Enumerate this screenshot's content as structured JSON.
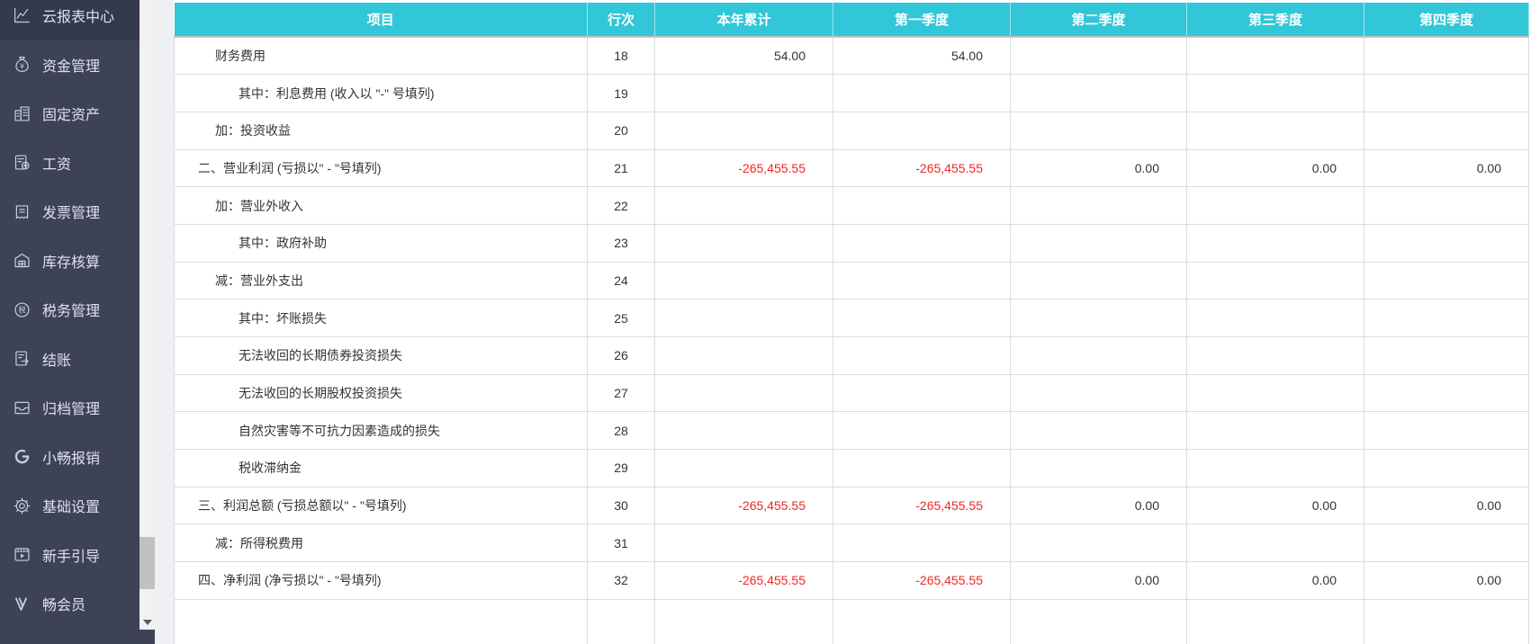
{
  "colors": {
    "accent_header": "#31c6d8",
    "sidebar_bg": "#3e4257",
    "sidebar_text": "#dce1ee",
    "negative_value": "#f42525",
    "grid_border": "#dcdcdc"
  },
  "sidebar": {
    "items": [
      {
        "label": "云报表中心",
        "icon": "chart-line-icon"
      },
      {
        "label": "资金管理",
        "icon": "money-bag-icon"
      },
      {
        "label": "固定资产",
        "icon": "building-icon"
      },
      {
        "label": "工资",
        "icon": "payroll-icon"
      },
      {
        "label": "发票管理",
        "icon": "invoice-icon"
      },
      {
        "label": "库存核算",
        "icon": "warehouse-icon"
      },
      {
        "label": "税务管理",
        "icon": "tax-icon"
      },
      {
        "label": "结账",
        "icon": "closing-icon"
      },
      {
        "label": "归档管理",
        "icon": "archive-icon"
      },
      {
        "label": "小畅报销",
        "icon": "reimburse-icon"
      },
      {
        "label": "基础设置",
        "icon": "settings-gear-icon"
      },
      {
        "label": "新手引导",
        "icon": "guide-video-icon"
      },
      {
        "label": "畅会员",
        "icon": "member-v-icon"
      }
    ]
  },
  "table": {
    "columns": [
      "项目",
      "行次",
      "本年累计",
      "第一季度",
      "第二季度",
      "第三季度",
      "第四季度"
    ],
    "rows": [
      {
        "item": "财务费用",
        "indent": 1,
        "line": "18",
        "values": [
          "54.00",
          "54.00",
          "",
          "",
          ""
        ]
      },
      {
        "item": "其中：利息费用 (收入以 \"-\" 号填列)",
        "indent": 2,
        "line": "19",
        "values": [
          "",
          "",
          "",
          "",
          ""
        ]
      },
      {
        "item": "加：投资收益",
        "indent": 1,
        "line": "20",
        "values": [
          "",
          "",
          "",
          "",
          ""
        ]
      },
      {
        "item": "二、营业利润 (亏损以\" - \"号填列)",
        "indent": 0,
        "line": "21",
        "values": [
          "-265,455.55",
          "-265,455.55",
          "0.00",
          "0.00",
          "0.00"
        ]
      },
      {
        "item": "加：营业外收入",
        "indent": 1,
        "line": "22",
        "values": [
          "",
          "",
          "",
          "",
          ""
        ]
      },
      {
        "item": "其中：政府补助",
        "indent": 2,
        "line": "23",
        "values": [
          "",
          "",
          "",
          "",
          ""
        ]
      },
      {
        "item": "减：营业外支出",
        "indent": 1,
        "line": "24",
        "values": [
          "",
          "",
          "",
          "",
          ""
        ]
      },
      {
        "item": "其中：坏账损失",
        "indent": 2,
        "line": "25",
        "values": [
          "",
          "",
          "",
          "",
          ""
        ]
      },
      {
        "item": "无法收回的长期债券投资损失",
        "indent": 2,
        "line": "26",
        "values": [
          "",
          "",
          "",
          "",
          ""
        ]
      },
      {
        "item": "无法收回的长期股权投资损失",
        "indent": 2,
        "line": "27",
        "values": [
          "",
          "",
          "",
          "",
          ""
        ]
      },
      {
        "item": "自然灾害等不可抗力因素造成的损失",
        "indent": 2,
        "line": "28",
        "values": [
          "",
          "",
          "",
          "",
          ""
        ]
      },
      {
        "item": "税收滞纳金",
        "indent": 2,
        "line": "29",
        "values": [
          "",
          "",
          "",
          "",
          ""
        ]
      },
      {
        "item": "三、利润总额 (亏损总额以\" - \"号填列)",
        "indent": 0,
        "line": "30",
        "values": [
          "-265,455.55",
          "-265,455.55",
          "0.00",
          "0.00",
          "0.00"
        ]
      },
      {
        "item": "减：所得税费用",
        "indent": 1,
        "line": "31",
        "values": [
          "",
          "",
          "",
          "",
          ""
        ]
      },
      {
        "item": "四、净利润 (净亏损以\" - \"号填列)",
        "indent": 0,
        "line": "32",
        "values": [
          "-265,455.55",
          "-265,455.55",
          "0.00",
          "0.00",
          "0.00"
        ]
      }
    ]
  }
}
